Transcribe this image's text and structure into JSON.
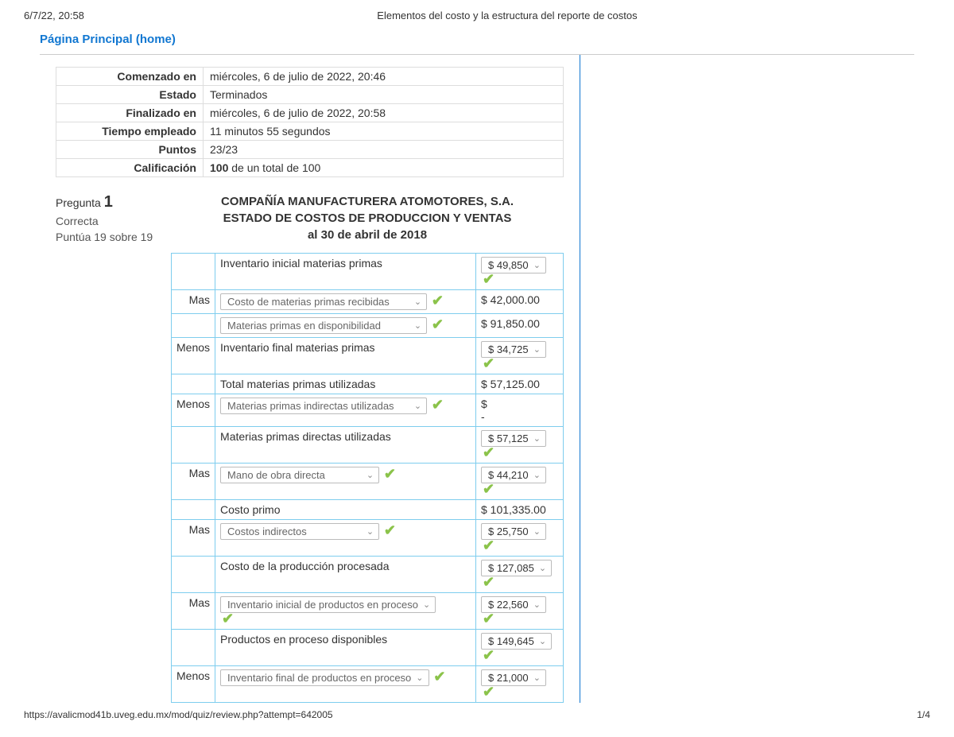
{
  "print": {
    "datetime": "6/7/22, 20:58",
    "title": "Elementos del costo y la estructura del reporte de costos",
    "url": "https://avalicmod41b.uveg.edu.mx/mod/quiz/review.php?attempt=642005",
    "page_num": "1/4"
  },
  "breadcrumb": {
    "home": "Página Principal (home)"
  },
  "summary": {
    "rows": [
      {
        "label": "Comenzado en",
        "value": "miércoles, 6 de julio de 2022, 20:46"
      },
      {
        "label": "Estado",
        "value": "Terminados"
      },
      {
        "label": "Finalizado en",
        "value": "miércoles, 6 de julio de 2022, 20:58"
      },
      {
        "label": "Tiempo empleado",
        "value": "11 minutos 55 segundos"
      },
      {
        "label": "Puntos",
        "value": "23/23"
      }
    ],
    "grade_label": "Calificación",
    "grade_value": "100",
    "grade_suffix": " de un total de 100"
  },
  "question": {
    "label": "Pregunta ",
    "number": "1",
    "state": "Correcta",
    "score": "Puntúa 19 sobre 19",
    "title_l1": "COMPAÑÍA MANUFACTURERA ATOMOTORES, S.A.",
    "title_l2": "ESTADO DE COSTOS DE PRODUCCION Y VENTAS",
    "title_l3": "al 30 de abril de 2018"
  },
  "rows": [
    {
      "c1": "",
      "type": "text",
      "desc": "Inventario inicial materias primas",
      "val_type": "select",
      "val": "$ 49,850"
    },
    {
      "c1": "Mas",
      "type": "select",
      "desc": "Costo de materias primas recibidas",
      "val_type": "text",
      "val": "$ 42,000.00"
    },
    {
      "c1": "",
      "type": "select",
      "desc": "Materias primas en disponibilidad",
      "val_type": "text",
      "val": "$ 91,850.00"
    },
    {
      "c1": "Menos",
      "type": "text",
      "desc": "Inventario final materias primas",
      "val_type": "select",
      "val": "$ 34,725"
    },
    {
      "c1": "",
      "type": "text",
      "desc": "Total materias primas utilizadas",
      "val_type": "text",
      "val": "$ 57,125.00"
    },
    {
      "c1": "Menos",
      "type": "select",
      "desc": "Materias primas indirectas utilizadas",
      "val_type": "text",
      "val": "$\n-"
    },
    {
      "c1": "",
      "type": "text",
      "desc": "Materias primas directas utilizadas",
      "val_type": "select",
      "val": "$ 57,125"
    },
    {
      "c1": "Mas",
      "type": "select",
      "desc": "Mano de obra directa",
      "sel_w": "mid",
      "val_type": "select",
      "val": "$ 44,210"
    },
    {
      "c1": "",
      "type": "text",
      "desc": "Costo primo",
      "val_type": "text",
      "val": "$ 101,335.00"
    },
    {
      "c1": "Mas",
      "type": "select",
      "desc": "Costos indirectos",
      "sel_w": "mid",
      "val_type": "select",
      "val": "$ 25,750"
    },
    {
      "c1": "",
      "type": "text",
      "desc": "Costo de la producción procesada",
      "val_type": "select",
      "val": "$ 127,085"
    },
    {
      "c1": "Mas",
      "type": "select",
      "desc": "Inventario inicial de productos en proceso",
      "tick_below": true,
      "val_type": "select",
      "val": "$ 22,560"
    },
    {
      "c1": "",
      "type": "text",
      "desc": "Productos en proceso disponibles",
      "val_type": "select",
      "val": "$ 149,645"
    },
    {
      "c1": "Menos",
      "type": "select",
      "desc": "Inventario final de productos en proceso",
      "val_type": "select",
      "val": "$ 21,000"
    }
  ],
  "colors": {
    "link": "#1177d1",
    "cell_border": "#7ecdee",
    "tick": "#8bc34a"
  }
}
